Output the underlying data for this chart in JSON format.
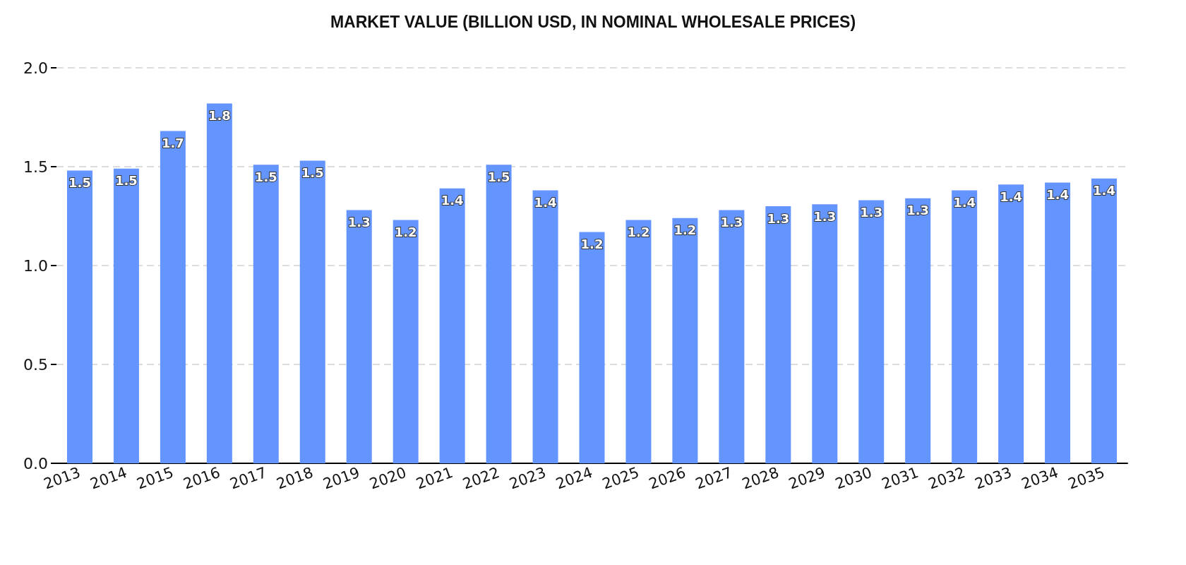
{
  "chart_data": {
    "type": "bar",
    "title": "MARKET VALUE (BILLION USD, IN NOMINAL WHOLESALE PRICES)",
    "categories": [
      "2013",
      "2014",
      "2015",
      "2016",
      "2017",
      "2018",
      "2019",
      "2020",
      "2021",
      "2022",
      "2023",
      "2024",
      "2025",
      "2026",
      "2027",
      "2028",
      "2029",
      "2030",
      "2031",
      "2032",
      "2033",
      "2034",
      "2035"
    ],
    "values": [
      1.48,
      1.49,
      1.68,
      1.82,
      1.51,
      1.53,
      1.28,
      1.23,
      1.39,
      1.51,
      1.38,
      1.17,
      1.23,
      1.24,
      1.28,
      1.3,
      1.31,
      1.33,
      1.34,
      1.38,
      1.41,
      1.42,
      1.44
    ],
    "value_labels": [
      "1.5",
      "1.5",
      "1.7",
      "1.8",
      "1.5",
      "1.5",
      "1.3",
      "1.2",
      "1.4",
      "1.5",
      "1.4",
      "1.2",
      "1.2",
      "1.2",
      "1.3",
      "1.3",
      "1.3",
      "1.3",
      "1.3",
      "1.4",
      "1.4",
      "1.4",
      "1.4"
    ],
    "color": "#6495fe",
    "ylim": [
      0,
      2
    ],
    "yticks": [
      {
        "value": 0,
        "label": "0.0"
      },
      0.5,
      {
        "value": 1,
        "label": "1.0"
      },
      1.5,
      {
        "value": 2,
        "label": "2.0"
      }
    ],
    "grid": "y"
  }
}
